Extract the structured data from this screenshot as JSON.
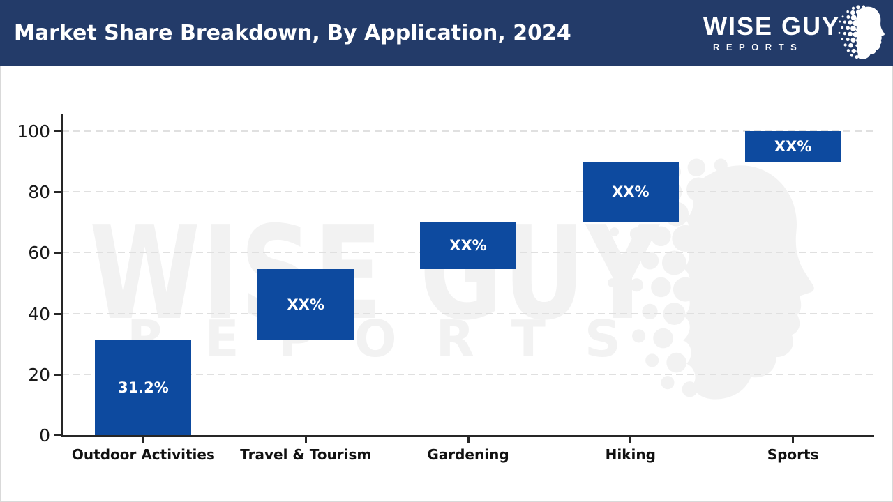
{
  "header": {
    "title": "Market Share Breakdown, By Application, 2024",
    "bg_color": "#233B69",
    "logo": {
      "line1": "WISE GUY",
      "line2": "REPORTS"
    }
  },
  "watermark": {
    "line1": "WISE GUY",
    "line2": "REPORTS"
  },
  "chart_data": {
    "type": "bar",
    "subtype": "waterfall",
    "title": "Market Share Breakdown, By Application, 2024",
    "categories": [
      "Outdoor Activities",
      "Travel & Tourism",
      "Gardening",
      "Hiking",
      "Sports"
    ],
    "segments": [
      {
        "category": "Outdoor Activities",
        "start": 0,
        "end": 31.2,
        "label": "31.2%"
      },
      {
        "category": "Travel & Tourism",
        "start": 31.2,
        "end": 54.5,
        "label": "XX%"
      },
      {
        "category": "Gardening",
        "start": 54.5,
        "end": 70.1,
        "label": "XX%"
      },
      {
        "category": "Hiking",
        "start": 70.1,
        "end": 90.0,
        "label": "XX%"
      },
      {
        "category": "Sports",
        "start": 90.0,
        "end": 100.0,
        "label": "XX%"
      }
    ],
    "xlabel": "",
    "ylabel": "",
    "ylim": [
      0,
      105.7
    ],
    "yticks": [
      0,
      20,
      40,
      60,
      80,
      100
    ],
    "grid": "horizontal-dashed",
    "legend": "none",
    "bar_color": "#0D4A9F",
    "bar_label_color": "#ffffff",
    "axis_color": "#262626",
    "grid_color": "#e0e0e0"
  }
}
